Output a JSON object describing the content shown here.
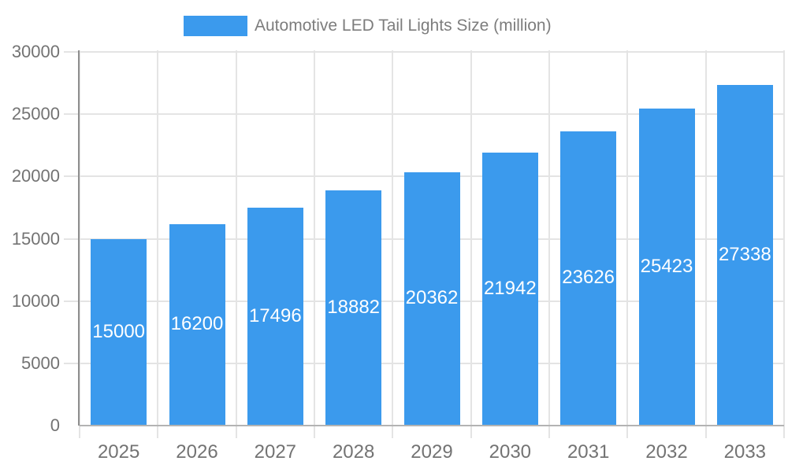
{
  "legend": {
    "label": "Automotive LED Tail Lights Size (million)"
  },
  "chart_data": {
    "type": "bar",
    "title": "Automotive LED Tail Lights Size (million)",
    "legend_position": "top",
    "legend_entries": [
      "Automotive LED Tail Lights Size (million)"
    ],
    "categories": [
      "2025",
      "2026",
      "2027",
      "2028",
      "2029",
      "2030",
      "2031",
      "2032",
      "2033"
    ],
    "series": [
      {
        "name": "Automotive LED Tail Lights Size (million)",
        "values": [
          15000,
          16200,
          17496,
          18882,
          20362,
          21942,
          23626,
          25423,
          27338
        ]
      }
    ],
    "value_labels": "inside-center",
    "xlabel": "",
    "ylabel": "",
    "ylim": [
      0,
      30000
    ],
    "yticks": [
      0,
      5000,
      10000,
      15000,
      20000,
      25000,
      30000
    ],
    "grid": true
  },
  "colors": {
    "bar": "#3B9AED",
    "bar_value_text": "#FFFFFF",
    "grid_line": "#E4E4E4",
    "y_axis_line": "#8E8E8E",
    "x_axis_line": "#B3B3B3",
    "tick_label": "#737373",
    "legend_text": "#7D7D7D",
    "background": "#FFFFFF"
  }
}
